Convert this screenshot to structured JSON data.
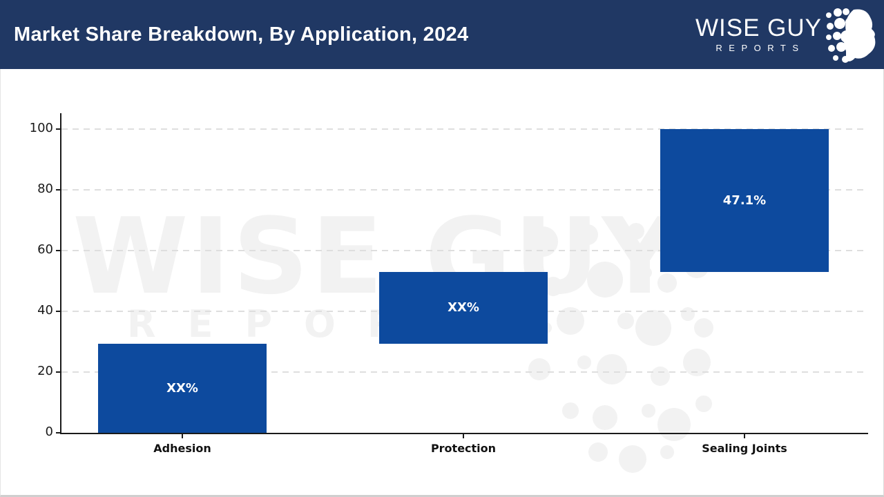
{
  "header": {
    "title": "Market Share Breakdown, By Application, 2024",
    "bg_color": "#203864",
    "logo": {
      "line1": "WISE GUY",
      "line2": "REPORTS"
    }
  },
  "watermark": {
    "line1": "WISE GUY",
    "line2": "REPORTS"
  },
  "chart_data": {
    "type": "bar",
    "variant": "stacked-waterfall",
    "title": "Market Share Breakdown, By Application, 2024",
    "categories": [
      "Adhesion",
      "Protection",
      "Sealing Joints"
    ],
    "segments": [
      {
        "category": "Adhesion",
        "start": 0,
        "end": 29.4,
        "label": "XX%"
      },
      {
        "category": "Protection",
        "start": 29.4,
        "end": 52.9,
        "label": "XX%"
      },
      {
        "category": "Sealing Joints",
        "start": 52.9,
        "end": 100,
        "label": "47.1%"
      }
    ],
    "yticks": [
      0,
      20,
      40,
      60,
      80,
      100
    ],
    "ylim": [
      0,
      105
    ],
    "xlabel": "",
    "ylabel": "",
    "grid": "horizontal-dashed",
    "legend": "none",
    "bar_color": "#0d4a9e",
    "value_label_color": "#ffffff",
    "axis_color": "#1a1a1a",
    "gridline_color": "#dedede"
  }
}
